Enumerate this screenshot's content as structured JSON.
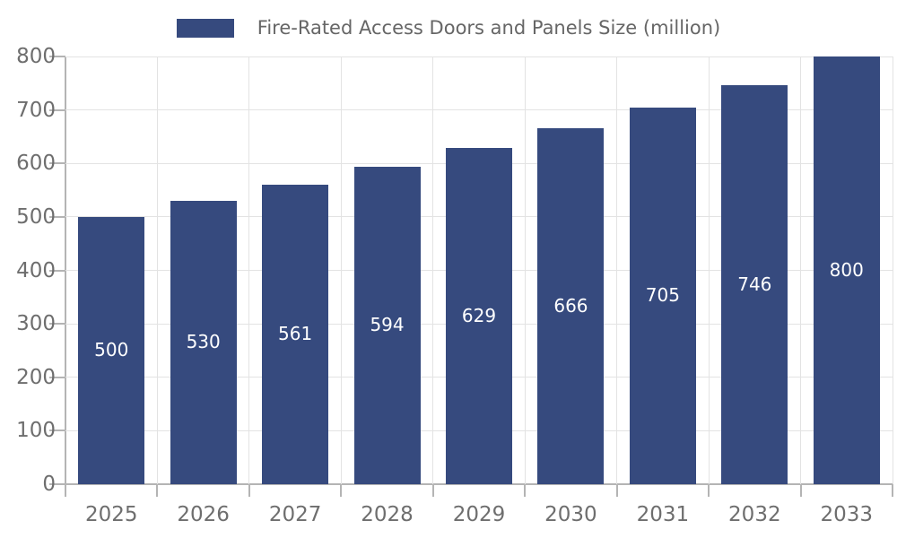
{
  "legend": {
    "label": "Fire-Rated Access Doors and Panels Size (million)"
  },
  "colors": {
    "bar": "#364A7E",
    "grid": "#e3e3e3",
    "axis": "#b4b4b4",
    "tick_label": "#6e6e6e",
    "legend_label": "#666666",
    "value_label": "#ffffff"
  },
  "chart_data": {
    "type": "bar",
    "title": "Fire-Rated Access Doors and Panels Size (million)",
    "categories": [
      "2025",
      "2026",
      "2027",
      "2028",
      "2029",
      "2030",
      "2031",
      "2032",
      "2033"
    ],
    "values": [
      500,
      530,
      561,
      594,
      629,
      666,
      705,
      746,
      800
    ],
    "xlabel": "",
    "ylabel": "",
    "ylim": [
      0,
      800
    ],
    "ytick_step": 100,
    "yticks": [
      0,
      100,
      200,
      300,
      400,
      500,
      600,
      700,
      800
    ],
    "grid": true,
    "legend_position": "top-center",
    "value_labels": "inside-middle"
  }
}
